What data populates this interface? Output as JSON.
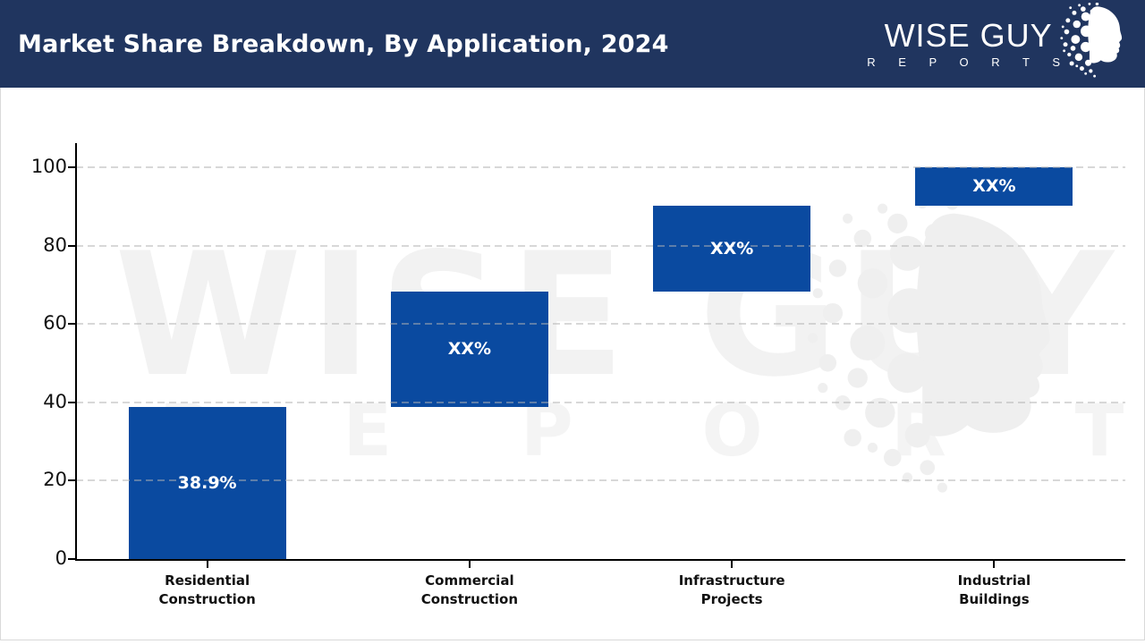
{
  "header": {
    "title": "Market Share Breakdown, By Application, 2024",
    "bg_color": "#20355f",
    "logo": {
      "name": "WISE GUY",
      "tagline": "R E P O R T S"
    }
  },
  "watermark": {
    "line1": "WISE GUY",
    "line2": "R E P O R T S"
  },
  "chart_data": {
    "type": "bar",
    "variant": "waterfall",
    "title": "Market Share Breakdown, By Application, 2024",
    "categories": [
      "Residential Construction",
      "Commercial Construction",
      "Infrastructure Projects",
      "Industrial Buildings"
    ],
    "category_lines": [
      [
        "Residential",
        "Construction"
      ],
      [
        "Commercial",
        "Construction"
      ],
      [
        "Infrastructure",
        "Projects"
      ],
      [
        "Industrial",
        "Buildings"
      ]
    ],
    "segments": [
      {
        "category": "Residential Construction",
        "start": 0,
        "end": 38.9,
        "label": "38.9%"
      },
      {
        "category": "Commercial Construction",
        "start": 38.9,
        "end": 68.3,
        "label": "XX%"
      },
      {
        "category": "Infrastructure Projects",
        "start": 68.3,
        "end": 90.2,
        "label": "XX%"
      },
      {
        "category": "Industrial Buildings",
        "start": 90.2,
        "end": 100,
        "label": "XX%"
      }
    ],
    "xlabel": "",
    "ylabel": "",
    "ylim": [
      0,
      100
    ],
    "yticks": [
      0,
      20,
      40,
      60,
      80,
      100
    ],
    "bar_color": "#0a4aa0",
    "bar_label_color": "#ffffff",
    "grid": "horizontal dashed",
    "legend": "none"
  }
}
